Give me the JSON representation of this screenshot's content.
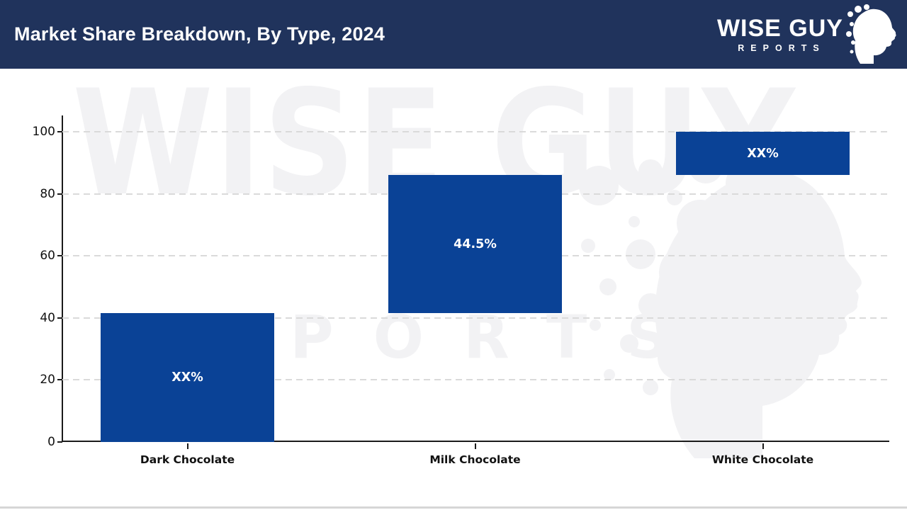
{
  "header": {
    "title": "Market Share Breakdown, By Type, 2024",
    "logo": {
      "line1": "WISE GUY",
      "line2": "REPORTS"
    }
  },
  "watermark": {
    "line1": "WISE GUY",
    "line2": "REPORTS"
  },
  "chart_data": {
    "type": "bar",
    "variant": "waterfall-stacked-percentage",
    "title": "Market Share Breakdown, By Type, 2024",
    "categories": [
      "Dark Chocolate",
      "Milk Chocolate",
      "White Chocolate"
    ],
    "segments": [
      {
        "category": "Dark Chocolate",
        "start": 0,
        "end": 41.5,
        "label": "XX%"
      },
      {
        "category": "Milk Chocolate",
        "start": 41.5,
        "end": 86,
        "label": "44.5%"
      },
      {
        "category": "White Chocolate",
        "start": 86,
        "end": 100,
        "label": "XX%"
      }
    ],
    "ylim": [
      0,
      100
    ],
    "yticks": [
      0,
      20,
      40,
      60,
      80,
      100
    ],
    "grid": "horizontal-dashed",
    "legend": "none",
    "bar_color": "#0a4296",
    "bar_label_color": "#ffffff"
  },
  "colors": {
    "header_bg": "#20335c",
    "bar": "#0a4296",
    "grid": "#dadada",
    "axis": "#1a1a1a",
    "watermark": "#f2f2f4",
    "bottom_strip": "#d6d6d6"
  }
}
